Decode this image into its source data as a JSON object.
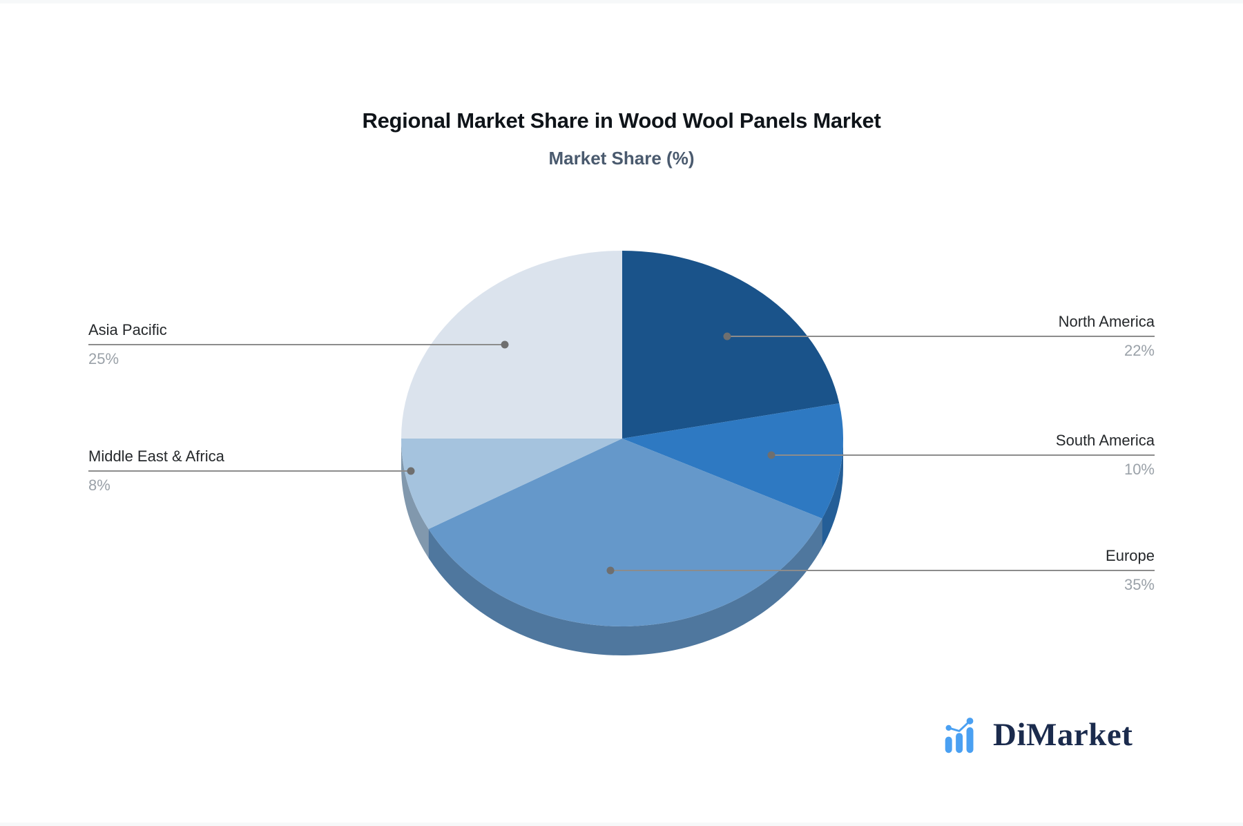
{
  "page": {
    "background": "#ffffff",
    "edge_strip_color": "#f6f8f9"
  },
  "chart_data": {
    "type": "pie",
    "style": "3d",
    "title": "Regional Market Share in Wood Wool Panels Market",
    "subtitle": "Market Share (%)",
    "start_angle": "top",
    "direction": "clockwise",
    "slices": [
      {
        "name": "North America",
        "value": 22,
        "pct_label": "22%",
        "color": "#1a538a"
      },
      {
        "name": "South America",
        "value": 10,
        "pct_label": "10%",
        "color": "#2e79c2"
      },
      {
        "name": "Europe",
        "value": 35,
        "pct_label": "35%",
        "color": "#6598ca"
      },
      {
        "name": "Middle East & Africa",
        "value": 8,
        "pct_label": "8%",
        "color": "#a5c3de"
      },
      {
        "name": "Asia Pacific",
        "value": 25,
        "pct_label": "25%",
        "color": "#dbe3ed"
      }
    ],
    "legend_position": "callout-labels",
    "leader_line_color": "#8c8c8c",
    "leader_dot_color": "#6f6f6f",
    "label_text_color": "#25282b",
    "pct_text_color": "#9aa1a8"
  },
  "branding": {
    "logo_text": "DiMarket",
    "logo_icon": "bar-chart-icon",
    "logo_color": "#4aa0f2",
    "logo_text_color": "#1b2b4d"
  }
}
